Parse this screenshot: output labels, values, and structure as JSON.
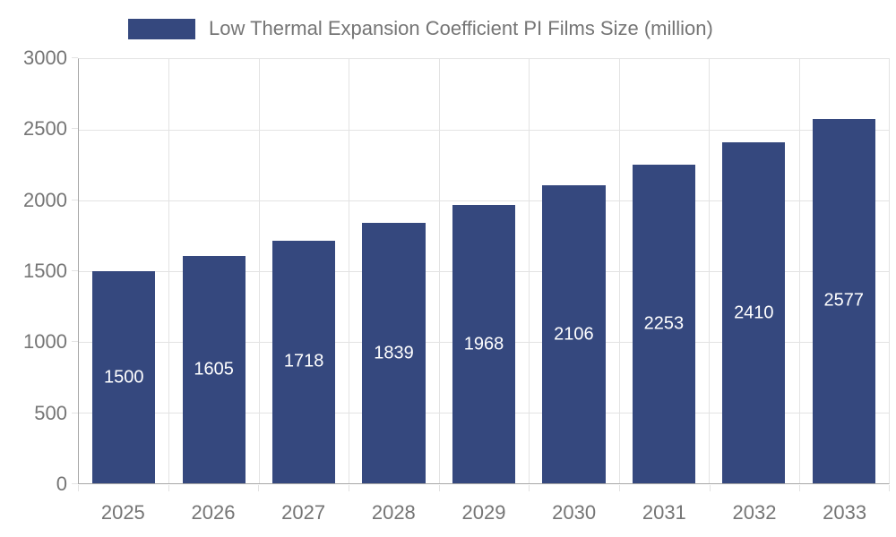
{
  "legend": {
    "label": "Low Thermal Expansion Coefficient PI Films Size (million)"
  },
  "chart_data": {
    "type": "bar",
    "title": "Low Thermal Expansion Coefficient PI Films Size (million)",
    "series_name": "Low Thermal Expansion Coefficient PI Films Size (million)",
    "categories": [
      "2025",
      "2026",
      "2027",
      "2028",
      "2029",
      "2030",
      "2031",
      "2032",
      "2033"
    ],
    "values": [
      1500,
      1605,
      1718,
      1839,
      1968,
      2106,
      2253,
      2410,
      2577
    ],
    "xlabel": "",
    "ylabel": "",
    "ylim": [
      0,
      3000
    ],
    "y_ticks": [
      0,
      500,
      1000,
      1500,
      2000,
      2500,
      3000
    ],
    "grid": true,
    "legend_position": "top",
    "value_labels": "inside-center",
    "colors": {
      "bar": "#35487e",
      "value_label": "#ffffff",
      "axis_text": "#757575",
      "gridline": "#e3e3e3",
      "axis_line": "#a6a6a6",
      "background": "#ffffff"
    }
  }
}
